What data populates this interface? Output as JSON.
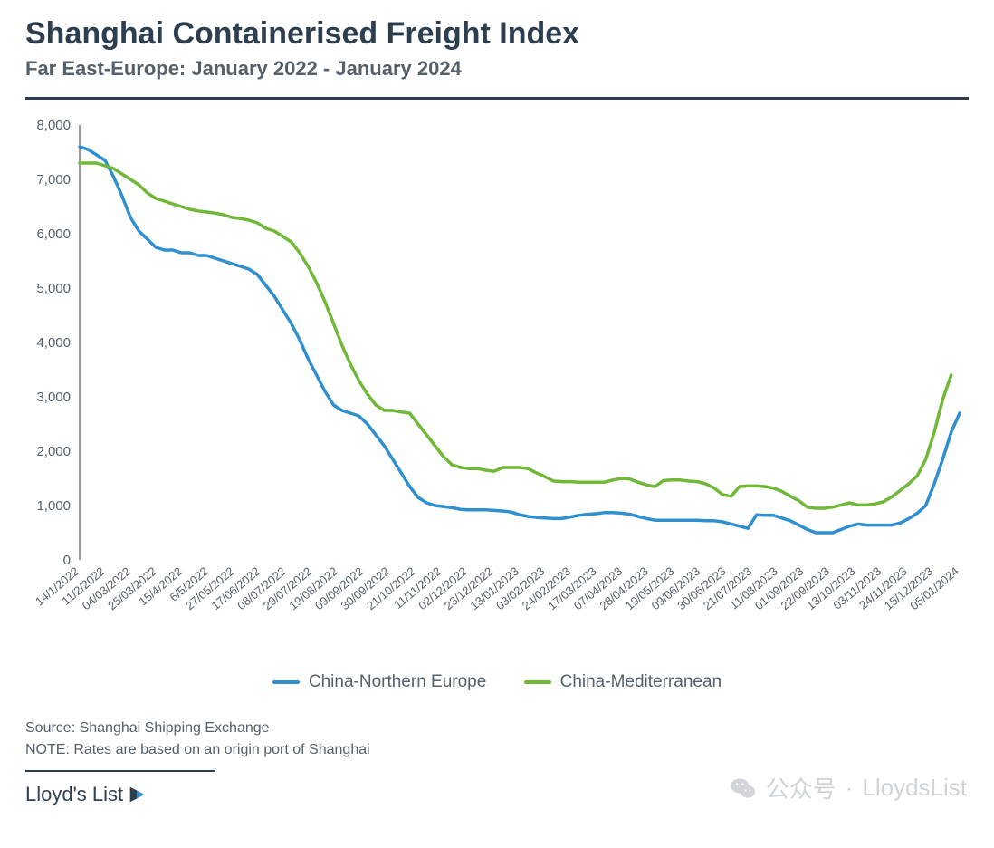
{
  "title": "Shanghai Containerised Freight Index",
  "subtitle": "Far East-Europe: January 2022 - January 2024",
  "chart": {
    "type": "line",
    "background_color": "#ffffff",
    "axis_color": "#55606b",
    "tick_font_size": 13,
    "ylabel_font_size": 15,
    "x_vertical_line_color": "#2c3e50",
    "line_width": 3.5,
    "ylim": [
      0,
      8000
    ],
    "ytick_step": 1000,
    "ytick_labels": [
      "0",
      "1,000",
      "2,000",
      "3,000",
      "4,000",
      "5,000",
      "6,000",
      "7,000",
      "8,000"
    ],
    "x_labels": [
      "14/1/2022",
      "11/2/2022",
      "04/03/2022",
      "25/03/2022",
      "15/4/2022",
      "6/5/2022",
      "27/05/2022",
      "17/06/2022",
      "08/07/2022",
      "29/07/2022",
      "19/08/2022",
      "09/09/2022",
      "30/09/2022",
      "21/10/2022",
      "11/11/2022",
      "02/12/2022",
      "23/12/2022",
      "13/01/2023",
      "03/02/2023",
      "24/02/2023",
      "17/03/2023",
      "07/04/2023",
      "28/04/2023",
      "19/05/2023",
      "09/06/2023",
      "30/06/2023",
      "21/07/2023",
      "11/08/2023",
      "01/09/2023",
      "22/09/2023",
      "13/10/2023",
      "03/11/2023",
      "24/11/2023",
      "15/12/2023",
      "05/01/2024"
    ],
    "series": [
      {
        "name": "China-Northern Europe",
        "color": "#2f8fcf",
        "values": [
          7600,
          7550,
          7450,
          7350,
          7050,
          6700,
          6300,
          6050,
          5900,
          5750,
          5700,
          5700,
          5650,
          5650,
          5600,
          5600,
          5550,
          5500,
          5450,
          5400,
          5350,
          5250,
          5050,
          4850,
          4600,
          4350,
          4050,
          3700,
          3400,
          3100,
          2850,
          2750,
          2700,
          2650,
          2500,
          2300,
          2100,
          1850,
          1600,
          1350,
          1150,
          1050,
          1000,
          980,
          960,
          930,
          920,
          920,
          920,
          910,
          900,
          880,
          830,
          800,
          780,
          770,
          760,
          760,
          790,
          820,
          840,
          850,
          870,
          870,
          860,
          840,
          800,
          760,
          730,
          730,
          730,
          730,
          730,
          730,
          720,
          720,
          700,
          660,
          620,
          580,
          830,
          820,
          820,
          770,
          720,
          640,
          560,
          500,
          500,
          500,
          560,
          620,
          660,
          640,
          640,
          640,
          640,
          680,
          760,
          860,
          1000,
          1400,
          1850,
          2350,
          2700
        ]
      },
      {
        "name": "China-Mediterranean",
        "color": "#6fb838",
        "values": [
          7300,
          7300,
          7300,
          7250,
          7200,
          7100,
          7000,
          6900,
          6750,
          6650,
          6600,
          6550,
          6500,
          6450,
          6420,
          6400,
          6380,
          6350,
          6300,
          6280,
          6250,
          6200,
          6100,
          6050,
          5950,
          5850,
          5650,
          5400,
          5100,
          4750,
          4350,
          3950,
          3600,
          3300,
          3050,
          2850,
          2750,
          2750,
          2720,
          2700,
          2500,
          2300,
          2100,
          1900,
          1750,
          1700,
          1680,
          1680,
          1650,
          1630,
          1700,
          1700,
          1700,
          1680,
          1600,
          1530,
          1450,
          1440,
          1440,
          1430,
          1430,
          1430,
          1430,
          1470,
          1500,
          1490,
          1430,
          1380,
          1350,
          1460,
          1470,
          1470,
          1450,
          1440,
          1400,
          1320,
          1200,
          1170,
          1350,
          1360,
          1360,
          1350,
          1320,
          1260,
          1170,
          1090,
          970,
          950,
          950,
          970,
          1010,
          1050,
          1010,
          1010,
          1030,
          1070,
          1160,
          1280,
          1400,
          1550,
          1850,
          2350,
          2950,
          3400
        ]
      }
    ]
  },
  "legend": {
    "items": [
      {
        "label": "China-Northern Europe",
        "color": "#2f8fcf"
      },
      {
        "label": "China-Mediterranean",
        "color": "#6fb838"
      }
    ]
  },
  "footer": {
    "source": "Source: Shanghai Shipping Exchange",
    "note": "NOTE: Rates are based on an origin port of Shanghai",
    "brand": "Lloyd's List",
    "brand_icon_color": "#2f8fcf"
  },
  "watermark": {
    "text_cn": "公众号",
    "separator": "·",
    "text_en": "LloydsList"
  }
}
